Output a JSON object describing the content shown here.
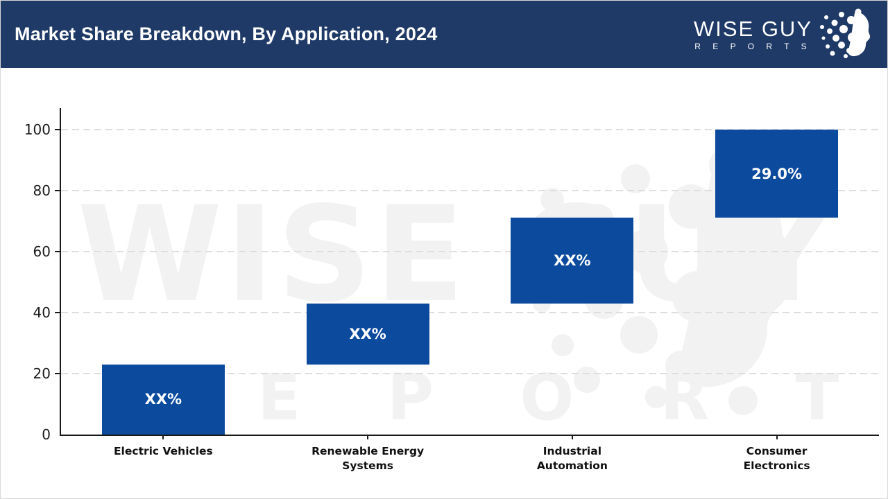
{
  "header": {
    "title": "Market Share Breakdown, By Application, 2024",
    "brand": {
      "name": "WISE GUY",
      "sub": "R E P O R T S"
    }
  },
  "watermark": {
    "line1": "WISE GUY",
    "line2": "R E P O R T S"
  },
  "chart_data": {
    "type": "bar",
    "subtype": "floating-segment-waterfall",
    "title": "Market Share Breakdown, By Application, 2024",
    "categories": [
      "Electric Vehicles",
      "Renewable Energy\nSystems",
      "Industrial\nAutomation",
      "Consumer\nElectronics"
    ],
    "bars": [
      {
        "category": "Electric Vehicles",
        "start": 0,
        "end": 23,
        "label": "XX%"
      },
      {
        "category": "Renewable Energy Systems",
        "start": 23,
        "end": 43,
        "label": "XX%"
      },
      {
        "category": "Industrial Automation",
        "start": 43,
        "end": 71,
        "label": "XX%"
      },
      {
        "category": "Consumer Electronics",
        "start": 71,
        "end": 100,
        "label": "29.0%"
      }
    ],
    "xlabel": "",
    "ylabel": "",
    "yticks": [
      0,
      20,
      40,
      60,
      80,
      100
    ],
    "ylim": [
      0,
      107
    ],
    "grid": "horizontal-dashed",
    "legend": "none",
    "bar_width_fraction": 0.6,
    "bar_color": "#0c4a9e",
    "bar_label_color": "#ffffff"
  },
  "colors": {
    "header_bg": "#1f3a67",
    "bar": "#0c4a9e",
    "grid": "#dedede",
    "axis": "#1a1a1a",
    "watermark": "#f2f2f2",
    "page_border": "#d9d9d9"
  }
}
